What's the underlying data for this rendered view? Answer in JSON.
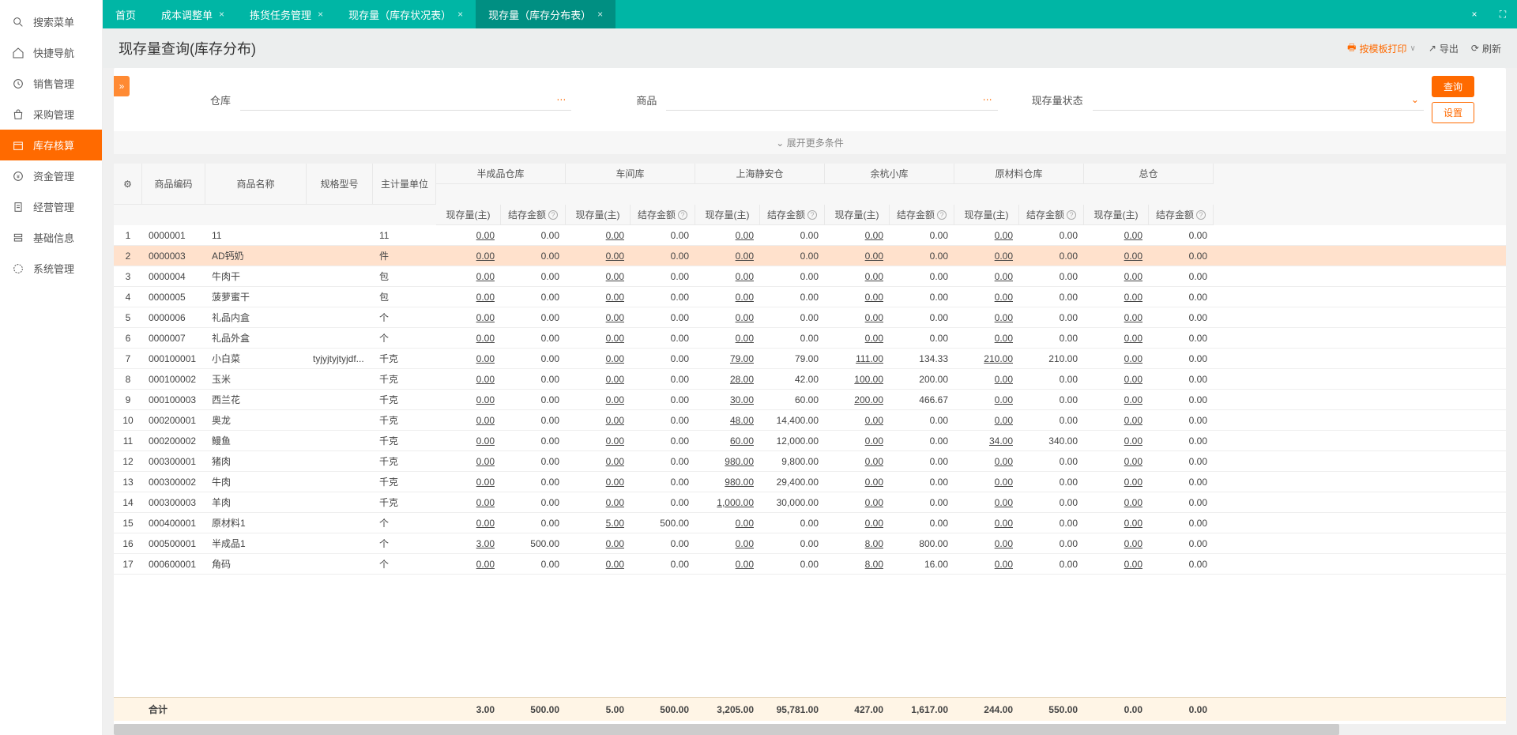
{
  "sidebar": {
    "items": [
      {
        "label": "搜索菜单",
        "icon": "search"
      },
      {
        "label": "快捷导航",
        "icon": "home"
      },
      {
        "label": "销售管理",
        "icon": "badge"
      },
      {
        "label": "采购管理",
        "icon": "bag"
      },
      {
        "label": "库存核算",
        "icon": "box",
        "active": true
      },
      {
        "label": "资金管理",
        "icon": "coin"
      },
      {
        "label": "经营管理",
        "icon": "clipboard"
      },
      {
        "label": "基础信息",
        "icon": "stack"
      },
      {
        "label": "系统管理",
        "icon": "gear-dash"
      }
    ]
  },
  "tabs": [
    {
      "label": "首页"
    },
    {
      "label": "成本调整单",
      "closable": true
    },
    {
      "label": "拣货任务管理",
      "closable": true
    },
    {
      "label": "现存量（库存状况表）",
      "closable": true
    },
    {
      "label": "现存量（库存分布表）",
      "closable": true,
      "active": true
    }
  ],
  "page": {
    "title": "现存量查询(库存分布)",
    "actions": {
      "print": "按模板打印",
      "export": "导出",
      "refresh": "刷新"
    }
  },
  "filters": {
    "warehouse": "仓库",
    "product": "商品",
    "status": "现存量状态",
    "query": "查询",
    "settings": "设置",
    "expand": "展开更多条件"
  },
  "table": {
    "gear_title": "⚙",
    "fixed_headers": {
      "code": "商品编码",
      "name": "商品名称",
      "spec": "规格型号",
      "unit": "主计量单位"
    },
    "groups": [
      "半成品仓库",
      "车间库",
      "上海静安仓",
      "余杭小库",
      "原材料仓库",
      "总仓"
    ],
    "sub_headers": {
      "qty": "现存量(主)",
      "amt": "结存金额"
    },
    "rows": [
      {
        "code": "0000001",
        "name": "11",
        "spec": "",
        "unit": "11",
        "vals": [
          [
            "0.00",
            "0.00"
          ],
          [
            "0.00",
            "0.00"
          ],
          [
            "0.00",
            "0.00"
          ],
          [
            "0.00",
            "0.00"
          ],
          [
            "0.00",
            "0.00"
          ],
          [
            "0.00",
            "0.00"
          ]
        ]
      },
      {
        "code": "0000003",
        "name": "AD钙奶",
        "spec": "",
        "unit": "件",
        "hl": true,
        "vals": [
          [
            "0.00",
            "0.00"
          ],
          [
            "0.00",
            "0.00"
          ],
          [
            "0.00",
            "0.00"
          ],
          [
            "0.00",
            "0.00"
          ],
          [
            "0.00",
            "0.00"
          ],
          [
            "0.00",
            "0.00"
          ]
        ]
      },
      {
        "code": "0000004",
        "name": "牛肉干",
        "spec": "",
        "unit": "包",
        "vals": [
          [
            "0.00",
            "0.00"
          ],
          [
            "0.00",
            "0.00"
          ],
          [
            "0.00",
            "0.00"
          ],
          [
            "0.00",
            "0.00"
          ],
          [
            "0.00",
            "0.00"
          ],
          [
            "0.00",
            "0.00"
          ]
        ]
      },
      {
        "code": "0000005",
        "name": "菠萝蜜干",
        "spec": "",
        "unit": "包",
        "vals": [
          [
            "0.00",
            "0.00"
          ],
          [
            "0.00",
            "0.00"
          ],
          [
            "0.00",
            "0.00"
          ],
          [
            "0.00",
            "0.00"
          ],
          [
            "0.00",
            "0.00"
          ],
          [
            "0.00",
            "0.00"
          ]
        ]
      },
      {
        "code": "0000006",
        "name": "礼品内盒",
        "spec": "",
        "unit": "个",
        "vals": [
          [
            "0.00",
            "0.00"
          ],
          [
            "0.00",
            "0.00"
          ],
          [
            "0.00",
            "0.00"
          ],
          [
            "0.00",
            "0.00"
          ],
          [
            "0.00",
            "0.00"
          ],
          [
            "0.00",
            "0.00"
          ]
        ]
      },
      {
        "code": "0000007",
        "name": "礼品外盒",
        "spec": "",
        "unit": "个",
        "vals": [
          [
            "0.00",
            "0.00"
          ],
          [
            "0.00",
            "0.00"
          ],
          [
            "0.00",
            "0.00"
          ],
          [
            "0.00",
            "0.00"
          ],
          [
            "0.00",
            "0.00"
          ],
          [
            "0.00",
            "0.00"
          ]
        ]
      },
      {
        "code": "000100001",
        "name": "小白菜",
        "spec": "tyjyjtyjtyjdf...",
        "unit": "千克",
        "vals": [
          [
            "0.00",
            "0.00"
          ],
          [
            "0.00",
            "0.00"
          ],
          [
            "79.00",
            "79.00"
          ],
          [
            "111.00",
            "134.33"
          ],
          [
            "210.00",
            "210.00"
          ],
          [
            "0.00",
            "0.00"
          ]
        ]
      },
      {
        "code": "000100002",
        "name": "玉米",
        "spec": "",
        "unit": "千克",
        "vals": [
          [
            "0.00",
            "0.00"
          ],
          [
            "0.00",
            "0.00"
          ],
          [
            "28.00",
            "42.00"
          ],
          [
            "100.00",
            "200.00"
          ],
          [
            "0.00",
            "0.00"
          ],
          [
            "0.00",
            "0.00"
          ]
        ]
      },
      {
        "code": "000100003",
        "name": "西兰花",
        "spec": "",
        "unit": "千克",
        "vals": [
          [
            "0.00",
            "0.00"
          ],
          [
            "0.00",
            "0.00"
          ],
          [
            "30.00",
            "60.00"
          ],
          [
            "200.00",
            "466.67"
          ],
          [
            "0.00",
            "0.00"
          ],
          [
            "0.00",
            "0.00"
          ]
        ]
      },
      {
        "code": "000200001",
        "name": "奥龙",
        "spec": "",
        "unit": "千克",
        "vals": [
          [
            "0.00",
            "0.00"
          ],
          [
            "0.00",
            "0.00"
          ],
          [
            "48.00",
            "14,400.00"
          ],
          [
            "0.00",
            "0.00"
          ],
          [
            "0.00",
            "0.00"
          ],
          [
            "0.00",
            "0.00"
          ]
        ]
      },
      {
        "code": "000200002",
        "name": "鳗鱼",
        "spec": "",
        "unit": "千克",
        "vals": [
          [
            "0.00",
            "0.00"
          ],
          [
            "0.00",
            "0.00"
          ],
          [
            "60.00",
            "12,000.00"
          ],
          [
            "0.00",
            "0.00"
          ],
          [
            "34.00",
            "340.00"
          ],
          [
            "0.00",
            "0.00"
          ]
        ]
      },
      {
        "code": "000300001",
        "name": "猪肉",
        "spec": "",
        "unit": "千克",
        "vals": [
          [
            "0.00",
            "0.00"
          ],
          [
            "0.00",
            "0.00"
          ],
          [
            "980.00",
            "9,800.00"
          ],
          [
            "0.00",
            "0.00"
          ],
          [
            "0.00",
            "0.00"
          ],
          [
            "0.00",
            "0.00"
          ]
        ]
      },
      {
        "code": "000300002",
        "name": "牛肉",
        "spec": "",
        "unit": "千克",
        "vals": [
          [
            "0.00",
            "0.00"
          ],
          [
            "0.00",
            "0.00"
          ],
          [
            "980.00",
            "29,400.00"
          ],
          [
            "0.00",
            "0.00"
          ],
          [
            "0.00",
            "0.00"
          ],
          [
            "0.00",
            "0.00"
          ]
        ]
      },
      {
        "code": "000300003",
        "name": "羊肉",
        "spec": "",
        "unit": "千克",
        "vals": [
          [
            "0.00",
            "0.00"
          ],
          [
            "0.00",
            "0.00"
          ],
          [
            "1,000.00",
            "30,000.00"
          ],
          [
            "0.00",
            "0.00"
          ],
          [
            "0.00",
            "0.00"
          ],
          [
            "0.00",
            "0.00"
          ]
        ]
      },
      {
        "code": "000400001",
        "name": "原材料1",
        "spec": "",
        "unit": "个",
        "vals": [
          [
            "0.00",
            "0.00"
          ],
          [
            "5.00",
            "500.00"
          ],
          [
            "0.00",
            "0.00"
          ],
          [
            "0.00",
            "0.00"
          ],
          [
            "0.00",
            "0.00"
          ],
          [
            "0.00",
            "0.00"
          ]
        ]
      },
      {
        "code": "000500001",
        "name": "半成品1",
        "spec": "",
        "unit": "个",
        "vals": [
          [
            "3.00",
            "500.00"
          ],
          [
            "0.00",
            "0.00"
          ],
          [
            "0.00",
            "0.00"
          ],
          [
            "8.00",
            "800.00"
          ],
          [
            "0.00",
            "0.00"
          ],
          [
            "0.00",
            "0.00"
          ]
        ]
      },
      {
        "code": "000600001",
        "name": "角码",
        "spec": "",
        "unit": "个",
        "vals": [
          [
            "0.00",
            "0.00"
          ],
          [
            "0.00",
            "0.00"
          ],
          [
            "0.00",
            "0.00"
          ],
          [
            "8.00",
            "16.00"
          ],
          [
            "0.00",
            "0.00"
          ],
          [
            "0.00",
            "0.00"
          ]
        ]
      }
    ],
    "footer": {
      "label": "合计",
      "vals": [
        [
          "3.00",
          "500.00"
        ],
        [
          "5.00",
          "500.00"
        ],
        [
          "3,205.00",
          "95,781.00"
        ],
        [
          "427.00",
          "1,617.00"
        ],
        [
          "244.00",
          "550.00"
        ],
        [
          "0.00",
          "0.00"
        ]
      ]
    }
  }
}
